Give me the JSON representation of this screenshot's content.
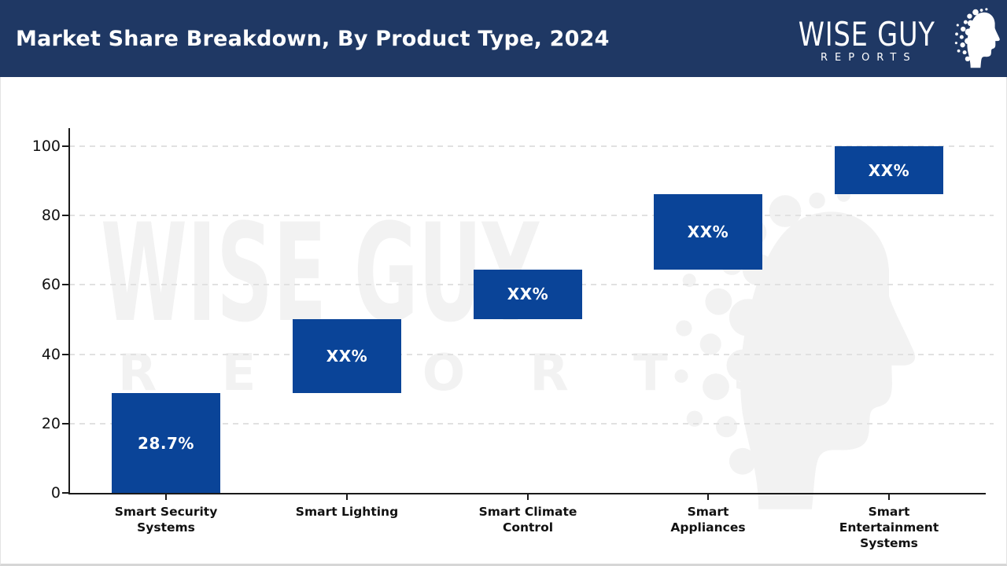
{
  "header": {
    "title": "Market Share Breakdown, By Product Type, 2024",
    "logo": {
      "line1": "WISE GUY",
      "line2": "REPORTS",
      "head_icon": "dotted-head-profile-icon"
    }
  },
  "watermark": {
    "line1": "WISE GUY",
    "line2": "R E P O R T S",
    "head_icon": "dotted-head-profile-icon"
  },
  "colors": {
    "header_bg": "#1f3864",
    "bar": "#0a4498",
    "bar_label_text": "#ffffff",
    "gridline": "#e1e1e1",
    "axis": "#1a1a1a",
    "watermark": "#f2f2f2"
  },
  "chart_data": {
    "type": "bar",
    "subtype": "waterfall-floating-bars",
    "title": "Market Share Breakdown, By Product Type, 2024",
    "categories": [
      "Smart Security Systems",
      "Smart Lighting",
      "Smart Climate Control",
      "Smart Appliances",
      "Smart Entertainment Systems"
    ],
    "bars": [
      {
        "category": "Smart Security Systems",
        "start": 0,
        "end": 28.7,
        "value": 28.7,
        "label": "28.7%"
      },
      {
        "category": "Smart Lighting",
        "start": 28.7,
        "end": 50.2,
        "value": 21.5,
        "label": "XX%"
      },
      {
        "category": "Smart Climate Control",
        "start": 50.2,
        "end": 64.5,
        "value": 14.3,
        "label": "XX%"
      },
      {
        "category": "Smart Appliances",
        "start": 64.5,
        "end": 86.1,
        "value": 21.6,
        "label": "XX%"
      },
      {
        "category": "Smart Entertainment Systems",
        "start": 86.1,
        "end": 100,
        "value": 13.9,
        "label": "XX%"
      }
    ],
    "y_ticks": [
      0,
      20,
      40,
      60,
      80,
      100
    ],
    "ylim": [
      0,
      105
    ],
    "xlabel": "",
    "ylabel": "",
    "grid": "horizontal-dashed",
    "legend": "none"
  }
}
